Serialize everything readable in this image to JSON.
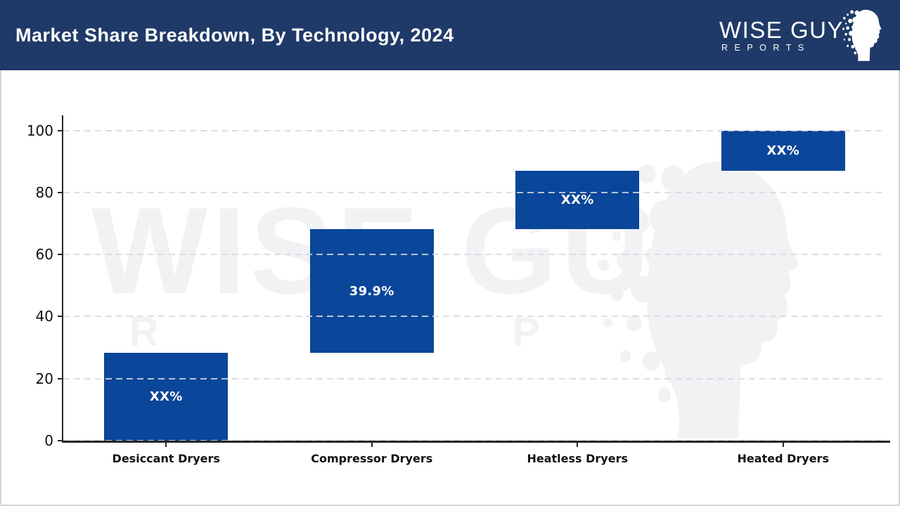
{
  "header": {
    "title": "Market Share Breakdown, By Technology, 2024",
    "logo_line1": "WISE GUY",
    "logo_line2": "REPORTS"
  },
  "watermark": {
    "line1": "WISE GUY",
    "line2": "R E P O R T S"
  },
  "colors": {
    "header_bg": "#1f3a68",
    "bar": "#0a4699",
    "grid": "#d9dde2",
    "axis": "#262626",
    "watermark": "#f1f2f4",
    "title_text": "#ffffff",
    "value_label_text": "#ffffff"
  },
  "chart_data": {
    "type": "bar",
    "subtype": "floating-waterfall-segments",
    "title": "Market Share Breakdown, By Technology, 2024",
    "categories": [
      "Desiccant Dryers",
      "Compressor Dryers",
      "Heatless Dryers",
      "Heated Dryers"
    ],
    "segments": [
      {
        "category": "Desiccant Dryers",
        "start": 0,
        "end": 28.3,
        "label": "XX%"
      },
      {
        "category": "Compressor Dryers",
        "start": 28.3,
        "end": 68.2,
        "label": "39.9%"
      },
      {
        "category": "Heatless Dryers",
        "start": 68.2,
        "end": 87.0,
        "label": "XX%"
      },
      {
        "category": "Heated Dryers",
        "start": 87.0,
        "end": 100.0,
        "label": "XX%"
      }
    ],
    "yticks": [
      0,
      20,
      40,
      60,
      80,
      100
    ],
    "ylim": [
      0,
      105
    ],
    "xlabel": "",
    "ylabel": "",
    "grid": "horizontal-dashed",
    "legend": "none",
    "bar_color": "#0a4699",
    "value_labels_inside": true
  }
}
